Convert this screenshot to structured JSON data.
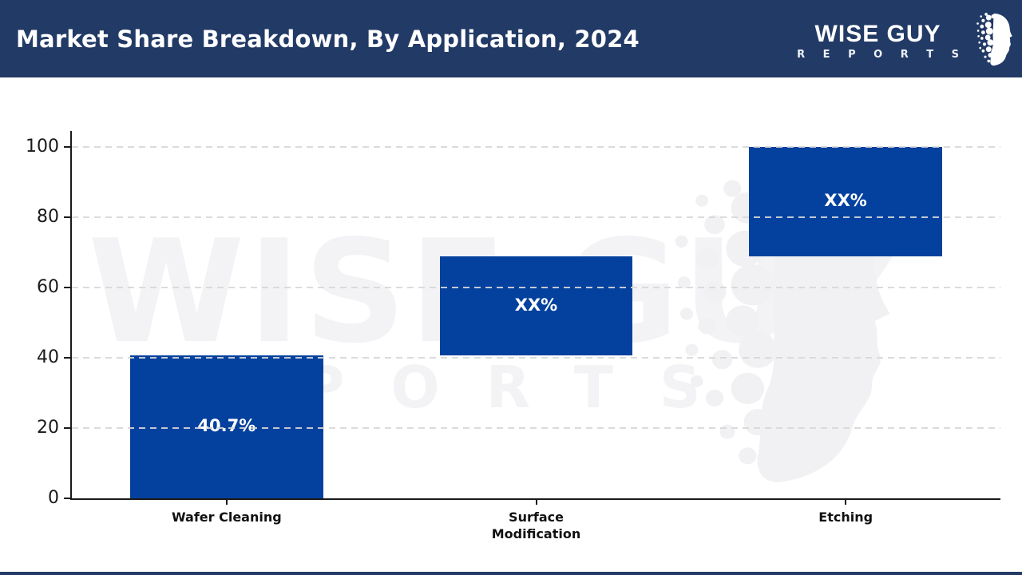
{
  "header": {
    "title": "Market Share Breakdown, By Application, 2024",
    "logo": {
      "line1": "WISE GUY",
      "line2": "R E P O R T S"
    }
  },
  "watermark": {
    "line1": "WISE GUY",
    "line2": "REPORTS"
  },
  "chart_data": {
    "type": "bar",
    "variant": "floating-segment",
    "title": "Market Share Breakdown, By Application, 2024",
    "categories": [
      "Wafer Cleaning",
      "Surface Modification",
      "Etching"
    ],
    "segments": [
      {
        "category": "Wafer Cleaning",
        "start": 0,
        "end": 40.7,
        "label": "40.7%"
      },
      {
        "category": "Surface Modification",
        "start": 40.7,
        "end": 68.9,
        "label": "XX%"
      },
      {
        "category": "Etching",
        "start": 68.9,
        "end": 100,
        "label": "XX%"
      }
    ],
    "ylim": [
      0,
      100
    ],
    "yticks": [
      0,
      20,
      40,
      60,
      80,
      100
    ],
    "grid": "dashed-horizontal",
    "legend": "none",
    "colors": {
      "bar": "#04419E",
      "bar_label": "#ffffff",
      "header_bg": "#223A66",
      "axis": "#1a1a1a",
      "gridline": "#d7d7d7",
      "watermark": "#f3f3f6"
    }
  }
}
